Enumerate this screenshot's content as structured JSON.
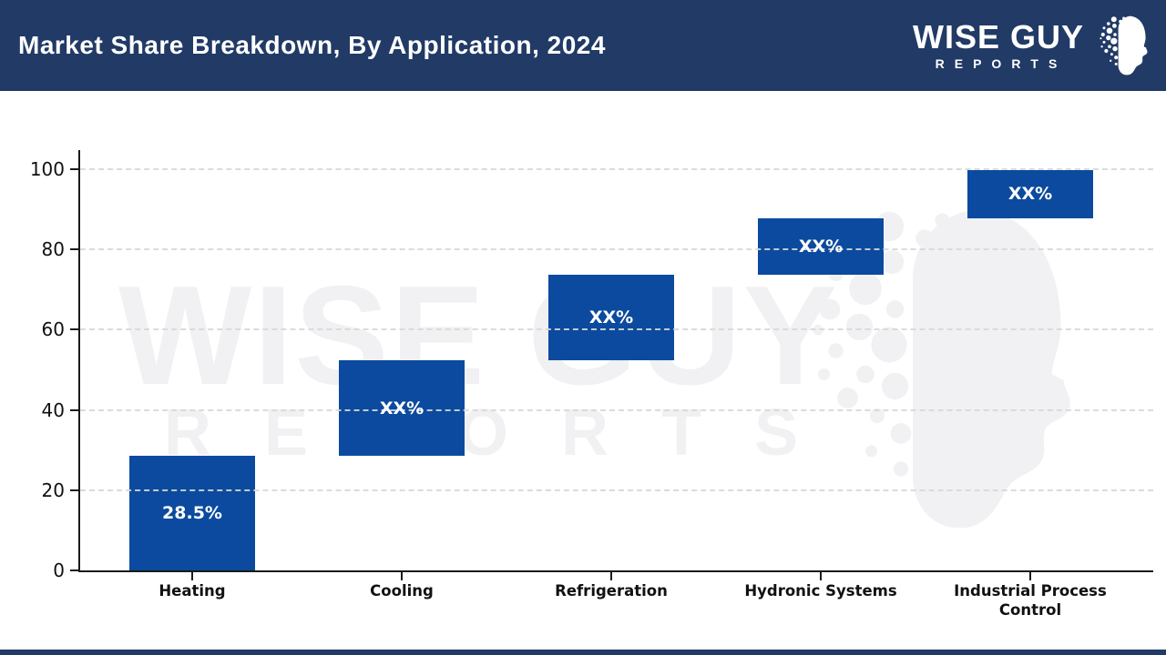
{
  "header": {
    "title": "Market Share Breakdown, By Application, 2024",
    "logo": {
      "line1": "WISE GUY",
      "line2": "REPORTS"
    }
  },
  "watermark": {
    "line1": "WISE GUY",
    "line2": "REPORTS"
  },
  "chart_data": {
    "type": "bar",
    "subtype": "floating-waterfall",
    "title": "Market Share Breakdown, By Application, 2024",
    "categories": [
      "Heating",
      "Cooling",
      "Refrigeration",
      "Hydronic Systems",
      "Industrial Process Control"
    ],
    "segments": [
      {
        "category": "Heating",
        "start": 0,
        "end": 28.5,
        "label": "28.5%"
      },
      {
        "category": "Cooling",
        "start": 28.5,
        "end": 52.4,
        "label": "XX%"
      },
      {
        "category": "Refrigeration",
        "start": 52.4,
        "end": 73.7,
        "label": "XX%"
      },
      {
        "category": "Hydronic Systems",
        "start": 73.7,
        "end": 87.8,
        "label": "XX%"
      },
      {
        "category": "Industrial Process Control",
        "start": 87.8,
        "end": 99.8,
        "label": "XX%"
      }
    ],
    "yticks": [
      0,
      20,
      40,
      60,
      80,
      100
    ],
    "ylim": [
      0,
      104.8
    ],
    "xlabel": "",
    "ylabel": "",
    "grid": "horizontal-dashed",
    "legend": "none",
    "bar_color": "#0b4a9e",
    "bar_label_color": "#ffffff"
  },
  "colors": {
    "header_bg": "#213a66",
    "footer_bg": "#213a66",
    "bar": "#0b4a9e",
    "watermark": "#f1f1f3",
    "grid": "#d8d8d8",
    "axis": "#1a1a1a",
    "tick_label": "#111111"
  }
}
